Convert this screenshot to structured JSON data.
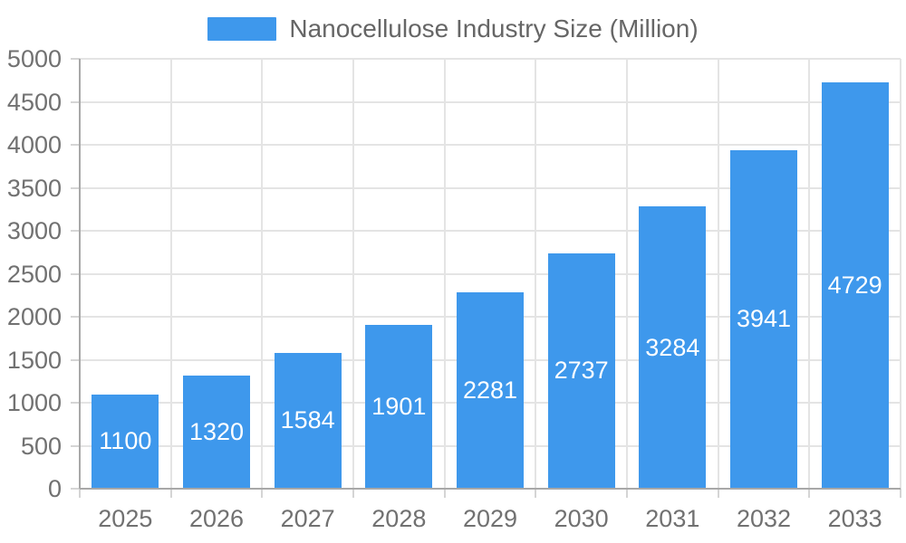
{
  "legend": {
    "label": "Nanocellulose Industry Size (Million)"
  },
  "chart_data": {
    "type": "bar",
    "title": "Nanocellulose Industry Size (Million)",
    "categories": [
      "2025",
      "2026",
      "2027",
      "2028",
      "2029",
      "2030",
      "2031",
      "2032",
      "2033"
    ],
    "series": [
      {
        "name": "Nanocellulose Industry Size (Million)",
        "values": [
          1100,
          1320,
          1584,
          1901,
          2281,
          2737,
          3284,
          3941,
          4729
        ]
      }
    ],
    "value_labels_shown": true,
    "xlabel": "",
    "ylabel": "",
    "ylim": [
      0,
      5000
    ],
    "y_ticks": [
      0,
      500,
      1000,
      1500,
      2000,
      2500,
      3000,
      3500,
      4000,
      4500,
      5000
    ],
    "grid": true,
    "legend_position": "top",
    "colors": {
      "bar": "#3E98EC",
      "value_label": "#FFFFFF",
      "axis_label": "#717171",
      "legend_label": "#666666",
      "grid_line": "#E4E4E4",
      "axis_line": "#A8A8A8",
      "tick": "#D5D5D5",
      "background": "#FFFFFF"
    }
  }
}
